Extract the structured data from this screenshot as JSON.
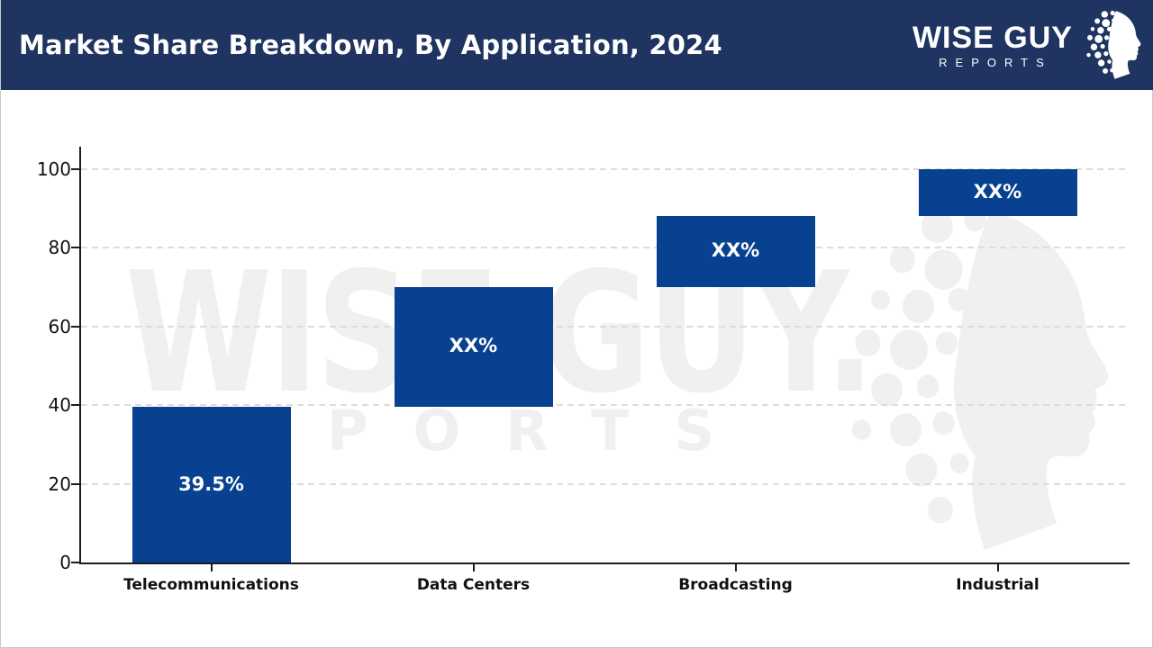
{
  "header": {
    "title": "Market Share Breakdown, By Application, 2024",
    "bg_color": "#1f3461",
    "logo": {
      "line1": "WISE GUY",
      "line2": "REPORTS"
    }
  },
  "watermark": {
    "line1": "WISE GUY.",
    "line2": "REPORTS"
  },
  "chart_data": {
    "type": "bar",
    "variant": "waterfall-cumulative",
    "title": "Market Share Breakdown, By Application, 2024",
    "categories": [
      "Telecommunications",
      "Data Centers",
      "Broadcasting",
      "Industrial"
    ],
    "segments": [
      {
        "category": "Telecommunications",
        "start": 0,
        "end": 39.5,
        "label": "39.5%"
      },
      {
        "category": "Data Centers",
        "start": 39.5,
        "end": 70,
        "label": "XX%"
      },
      {
        "category": "Broadcasting",
        "start": 70,
        "end": 88,
        "label": "XX%"
      },
      {
        "category": "Industrial",
        "start": 88,
        "end": 100,
        "label": "XX%"
      }
    ],
    "yticks": [
      0,
      20,
      40,
      60,
      80,
      100
    ],
    "ylim": [
      0,
      100
    ],
    "xlabel": "",
    "ylabel": "",
    "bar_color": "#08418f",
    "grid": true,
    "legend": false
  },
  "colors": {
    "header_bg": "#1f3461",
    "bar": "#08418f",
    "grid": "#dcdcdc",
    "watermark": "#f0f0f0"
  }
}
